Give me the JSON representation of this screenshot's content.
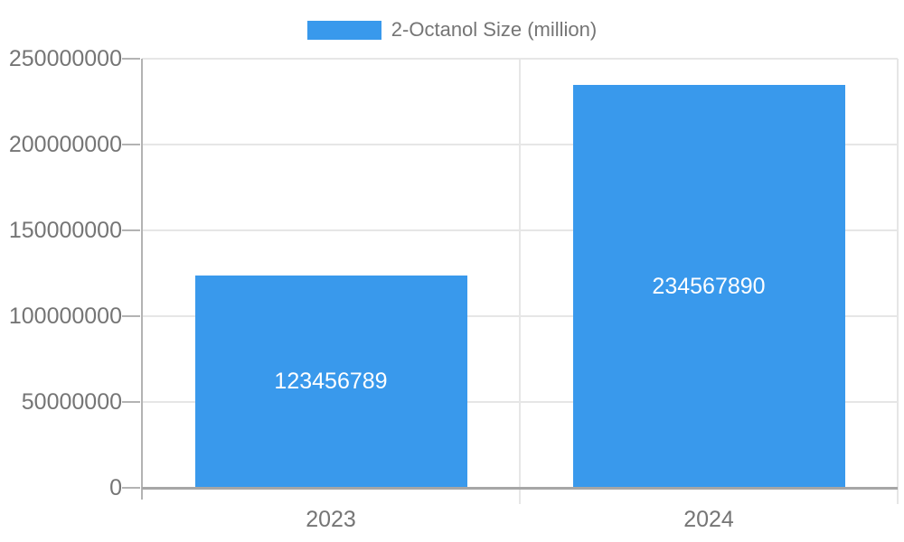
{
  "legend": {
    "label": "2-Octanol Size (million)"
  },
  "colors": {
    "bar": "#3999EC",
    "bar_label": "#FFFFFF",
    "grid": "#E6E6E6",
    "baseline": "#A6A6A6",
    "axis": "#B3B3B3",
    "text": "#757575",
    "background": "#FFFFFF"
  },
  "chart_data": {
    "type": "bar",
    "title": "",
    "legend_position": "top",
    "grid": true,
    "categories": [
      "2023",
      "2024"
    ],
    "series": [
      {
        "name": "2-Octanol Size (million)",
        "values": [
          123456789,
          234567890
        ]
      }
    ],
    "value_labels": [
      "123456789",
      "234567890"
    ],
    "xlabel": "",
    "ylabel": "",
    "ylim": [
      0,
      250000000
    ],
    "y_ticks": [
      0,
      50000000,
      100000000,
      150000000,
      200000000,
      250000000
    ],
    "y_tick_labels": [
      "0",
      "50000000",
      "100000000",
      "150000000",
      "200000000",
      "250000000"
    ]
  }
}
